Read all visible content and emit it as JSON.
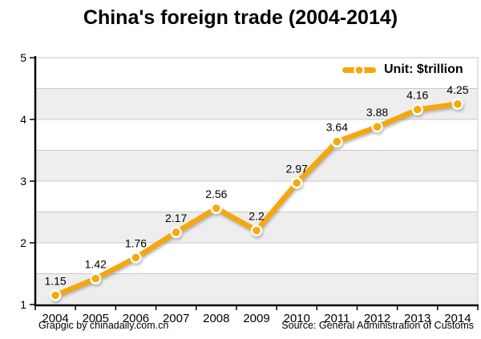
{
  "title": "China's foreign trade (2004-2014)",
  "legend": {
    "label": "Unit: $trillion"
  },
  "footer": {
    "left": "Grapgic by chinadaily.com.cn",
    "right": "Source: General Administration of Customs"
  },
  "colors": {
    "line": "#F5A70A",
    "marker_fill": "#F7A80D",
    "marker_ring": "#FFFFFF",
    "band": "#EEEEEE",
    "grid": "#C9C9C9",
    "axis": "#000000",
    "text": "#000000",
    "shadow": "#808080"
  },
  "chart_data": {
    "type": "line",
    "title": "China's foreign trade (2004-2014)",
    "unit_label": "Unit: $trillion",
    "categories": [
      "2004",
      "2005",
      "2006",
      "2007",
      "2008",
      "2009",
      "2010",
      "2011",
      "2012",
      "2013",
      "2014"
    ],
    "series": [
      {
        "name": "China's foreign trade ($trillion)",
        "values": [
          1.15,
          1.42,
          1.76,
          2.17,
          2.56,
          2.2,
          2.97,
          3.64,
          3.88,
          4.16,
          4.25
        ]
      }
    ],
    "point_labels": [
      "1.15",
      "1.42",
      "1.76",
      "2.17",
      "2.56",
      "2.2",
      "2.97",
      "3.64",
      "3.88",
      "4.16",
      "4.25"
    ],
    "ylim": [
      1,
      5
    ],
    "yticks": [
      1,
      2,
      3,
      4,
      5
    ],
    "grid": true,
    "band_step": 0.5,
    "legend_position": "top-right"
  }
}
